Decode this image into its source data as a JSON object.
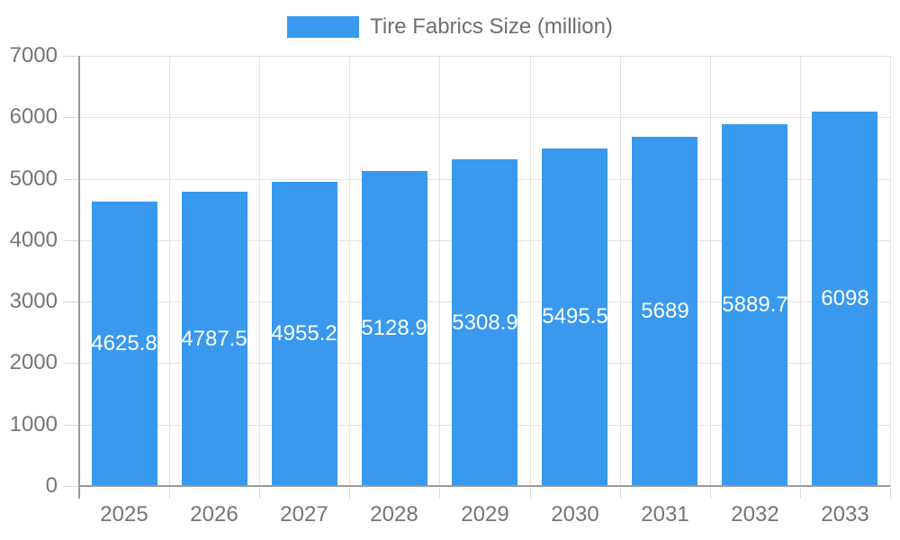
{
  "legend": {
    "label": "Tire Fabrics Size (million)"
  },
  "chart_data": {
    "type": "bar",
    "title": "Tire Fabrics Size (million)",
    "categories": [
      "2025",
      "2026",
      "2027",
      "2028",
      "2029",
      "2030",
      "2031",
      "2032",
      "2033"
    ],
    "values": [
      4625.8,
      4787.5,
      4955.2,
      5128.9,
      5308.9,
      5495.5,
      5689,
      5889.7,
      6098
    ],
    "value_labels": [
      "4625.8",
      "4787.5",
      "4955.2",
      "5128.9",
      "5308.9",
      "5495.5",
      "5689",
      "5889.7",
      "6098"
    ],
    "xlabel": "",
    "ylabel": "",
    "ylim": [
      0,
      7000
    ],
    "ytick_labels": [
      "0",
      "1000",
      "2000",
      "3000",
      "4000",
      "5000",
      "6000",
      "7000"
    ],
    "grid": true,
    "legend_position": "top-center",
    "bar_label_position": "middle"
  },
  "colors": {
    "bar": "#3999EE",
    "bar_label": "#FFFFFF",
    "grid_line": "#E2E2E2",
    "tick_line": "#D9D9D9",
    "axis_line": "#999999",
    "axis_text": "#757575",
    "legend_text": "#6E6E6E",
    "background": "#FFFFFF"
  }
}
